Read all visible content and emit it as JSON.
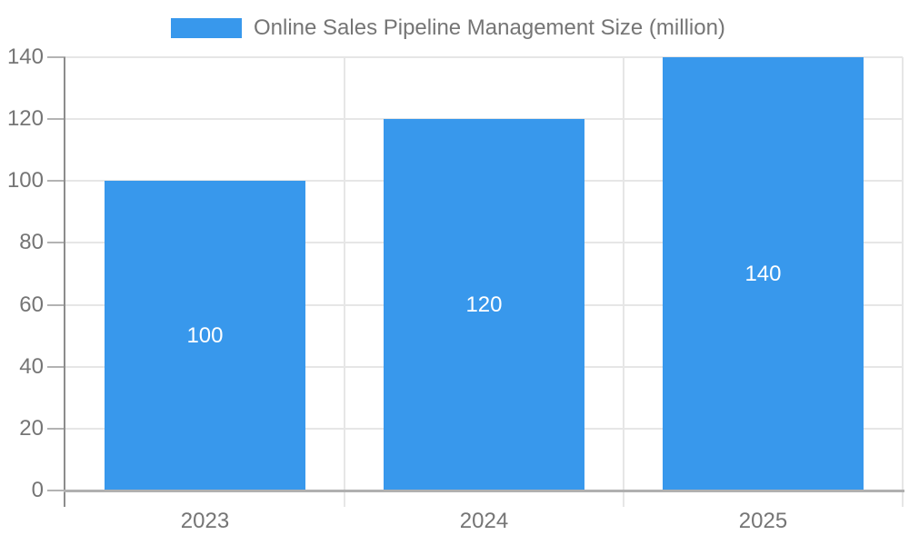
{
  "legend": {
    "label": "Online Sales Pipeline Management Size (million)"
  },
  "chart_data": {
    "type": "bar",
    "title": "",
    "xlabel": "",
    "ylabel": "",
    "categories": [
      "2023",
      "2024",
      "2025"
    ],
    "series": [
      {
        "name": "Online Sales Pipeline Management Size (million)",
        "values": [
          100,
          120,
          140
        ]
      }
    ],
    "bar_value_labels": [
      "100",
      "120",
      "140"
    ],
    "ylim": [
      0,
      140
    ],
    "yticks": [
      0,
      20,
      40,
      60,
      80,
      100,
      120,
      140
    ],
    "grid": "horizontal gridlines at each y tick, vertical lines at category boundaries and right edge",
    "legend_position": "top-center",
    "colors": {
      "bar": "#3898EC",
      "gridline": "#E6E6E6",
      "axis_line": "#8C8C8C",
      "baseline": "#B0B0B0",
      "tick_mark": "#B3B3B3",
      "label_text": "#757575",
      "value_text": "#FFFFFF",
      "background": "#FFFFFF"
    }
  }
}
